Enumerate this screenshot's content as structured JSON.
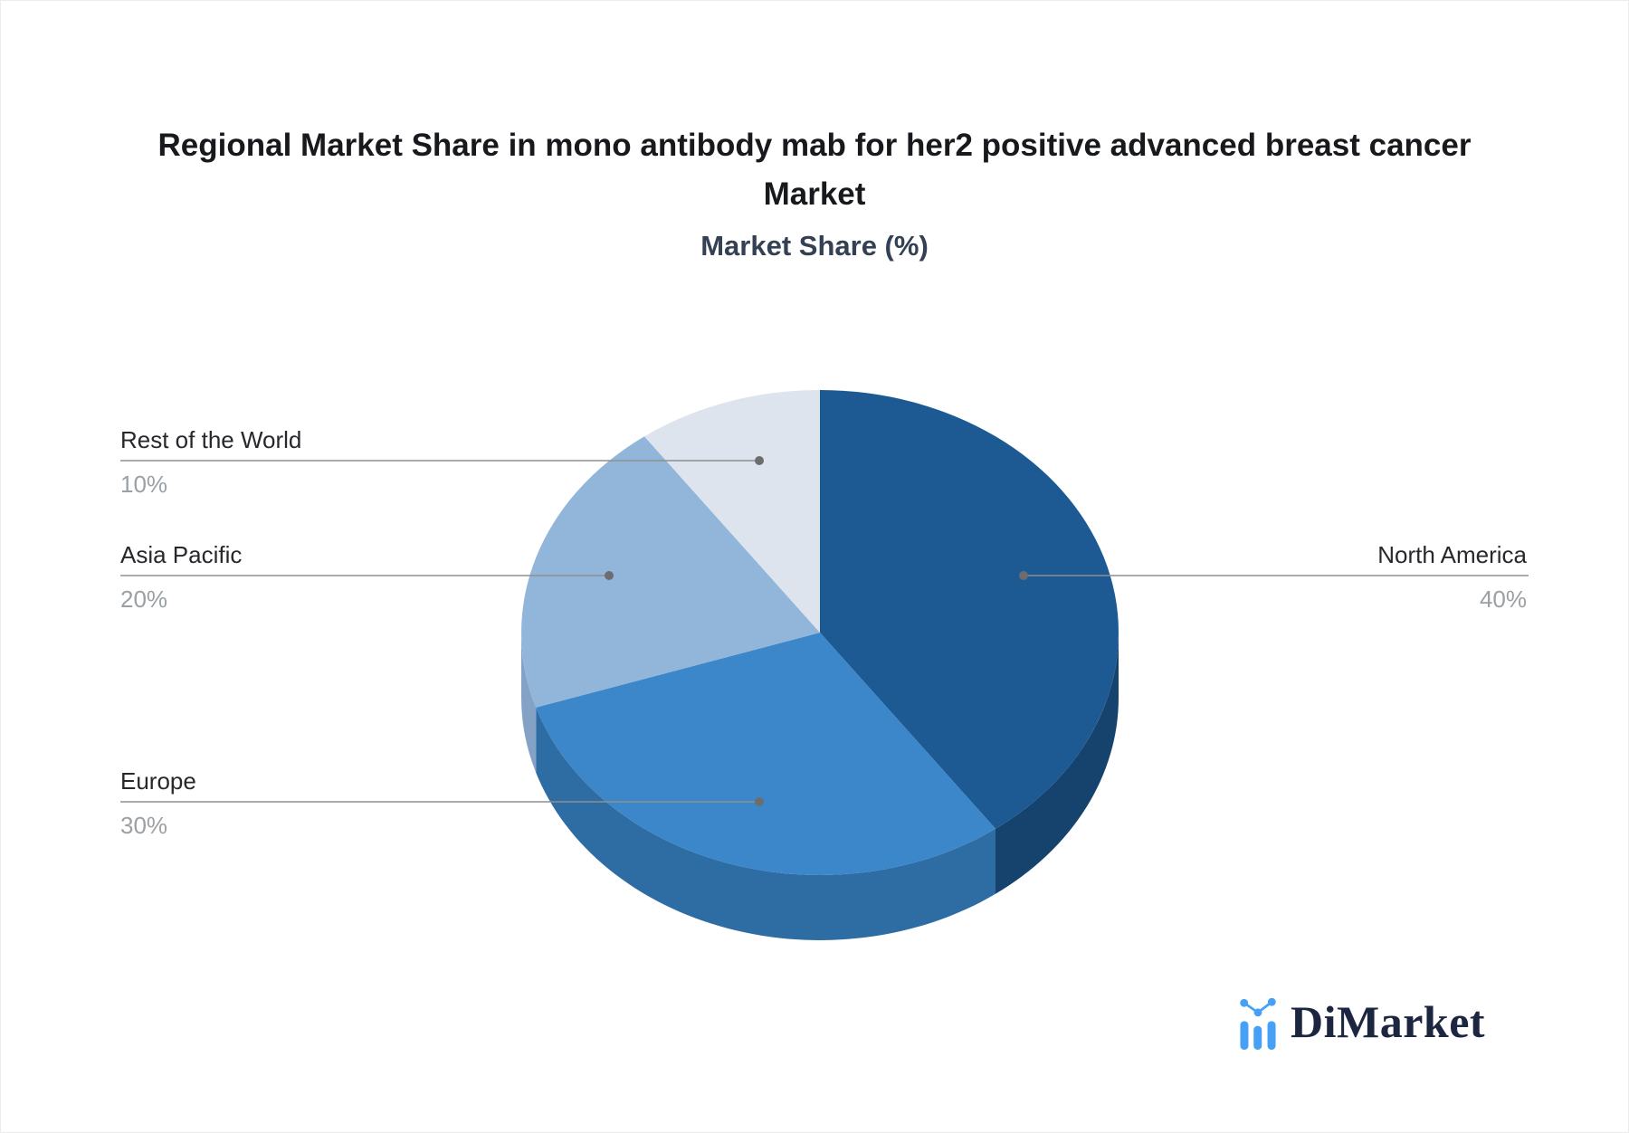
{
  "canvas": {
    "background": "#ffffff",
    "border_color": "#ececec"
  },
  "header": {
    "title_line_1": "Regional Market Share in mono antibody mab for her2 positive advanced breast cancer",
    "title_line_2": "Market",
    "subtitle": "Market Share (%)"
  },
  "chart_data": {
    "type": "pie",
    "style": "3d",
    "title": "Regional Market Share in mono antibody mab for her2 positive advanced breast cancer Market",
    "subtitle": "Market Share (%)",
    "unit": "%",
    "direction": "clockwise",
    "start_angle_deg": 0,
    "legend": "none",
    "labels": [
      "North America",
      "Europe",
      "Asia Pacific",
      "Rest of the World"
    ],
    "values": [
      40,
      30,
      20,
      10
    ],
    "display_values": [
      "40%",
      "30%",
      "20%",
      "10%"
    ],
    "colors": [
      "#1d5a93",
      "#3c87c9",
      "#92b5da",
      "#dde4ee"
    ],
    "side_colors": [
      "#16436e",
      "#2e6ca4",
      "#84a2c6",
      "#ccd6e4"
    ],
    "callout_line_color": "#8f8f8f",
    "callout_dot_color": "#6d6d6d"
  },
  "branding": {
    "logo_text": "DiMarket",
    "logo_icon": "bar-line-chart-icon",
    "logo_text_color": "#1c2640",
    "logo_icon_color": "#46a1f6"
  }
}
